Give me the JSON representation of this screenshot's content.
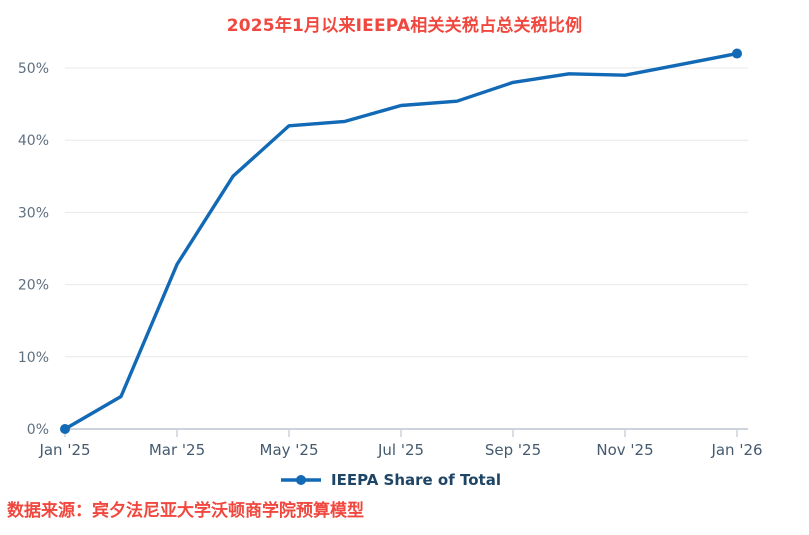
{
  "colors": {
    "accent_red": "#f0483f",
    "series_blue": "#1269b5",
    "grid_line": "#e8e8e8",
    "axis_line": "#ccd3da",
    "y_tick_label": "#5f7081",
    "x_tick_label": "#455a6e",
    "legend_text": "#1e4466",
    "background": "#ffffff"
  },
  "source_note": "数据来源：宾夕法尼亚大学沃顿商学院预算模型",
  "legend": {
    "items": [
      {
        "label": "IEEPA Share of Total",
        "marker": "line-with-dot",
        "color": "#1269b5"
      }
    ],
    "position": "bottom-center"
  },
  "chart_data": {
    "type": "line",
    "title": "2025年1月以来IEEPA相关关税占总关税比例",
    "xlabel": "",
    "ylabel": "",
    "x": [
      "Jan '25",
      "Feb '25",
      "Mar '25",
      "Apr '25",
      "May '25",
      "Jun '25",
      "Jul '25",
      "Aug '25",
      "Sep '25",
      "Oct '25",
      "Nov '25",
      "Dec '25",
      "Jan '26"
    ],
    "series": [
      {
        "name": "IEEPA Share of Total",
        "values": [
          0,
          4.5,
          22.8,
          35,
          42,
          42.6,
          44.8,
          45.4,
          48,
          49.2,
          49,
          50.5,
          52
        ]
      }
    ],
    "x_tick_labels": [
      "Jan '25",
      "Mar '25",
      "May '25",
      "Jul '25",
      "Sep '25",
      "Nov '25",
      "Jan '26"
    ],
    "x_tick_every": 2,
    "y_ticks": [
      0,
      10,
      20,
      30,
      40,
      50
    ],
    "y_tick_labels": [
      "0%",
      "10%",
      "20%",
      "30%",
      "40%",
      "50%"
    ],
    "ylim": [
      0,
      55
    ],
    "grid": "horizontal",
    "legend_position": "bottom",
    "markers": "endpoints-only"
  }
}
